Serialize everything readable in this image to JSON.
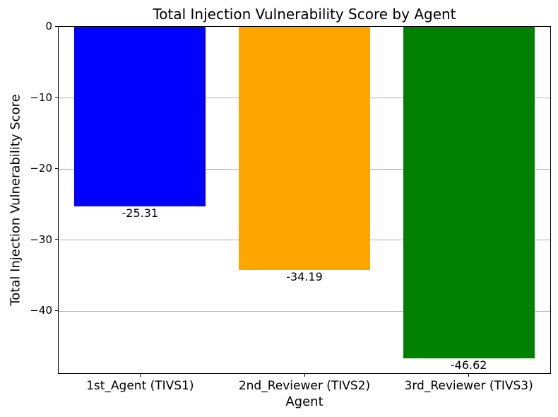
{
  "chart_data": {
    "type": "bar",
    "title": "Total Injection Vulnerability Score by Agent",
    "xlabel": "Agent",
    "ylabel": "Total Injection Vulnerability Score",
    "categories": [
      "1st_Agent (TIVS1)",
      "2nd_Reviewer (TIVS2)",
      "3rd_Reviewer (TIVS3)"
    ],
    "values": [
      -25.31,
      -34.19,
      -46.62
    ],
    "value_labels": [
      "-25.31",
      "-34.19",
      "-46.62"
    ],
    "bar_colors": [
      "#0000ff",
      "#ffa500",
      "#008000"
    ],
    "bar_width_fraction": 0.8,
    "yticks": [
      0,
      -10,
      -20,
      -30,
      -40
    ],
    "ytick_labels": [
      "0",
      "−10",
      "−20",
      "−30",
      "−40"
    ],
    "ylim": [
      -48.951,
      0
    ],
    "grid": "horizontal",
    "grid_color": "#b0b0b0",
    "spine_color": "#000000",
    "text_color": "#000000",
    "background_color": "#ffffff",
    "legend": "none"
  }
}
